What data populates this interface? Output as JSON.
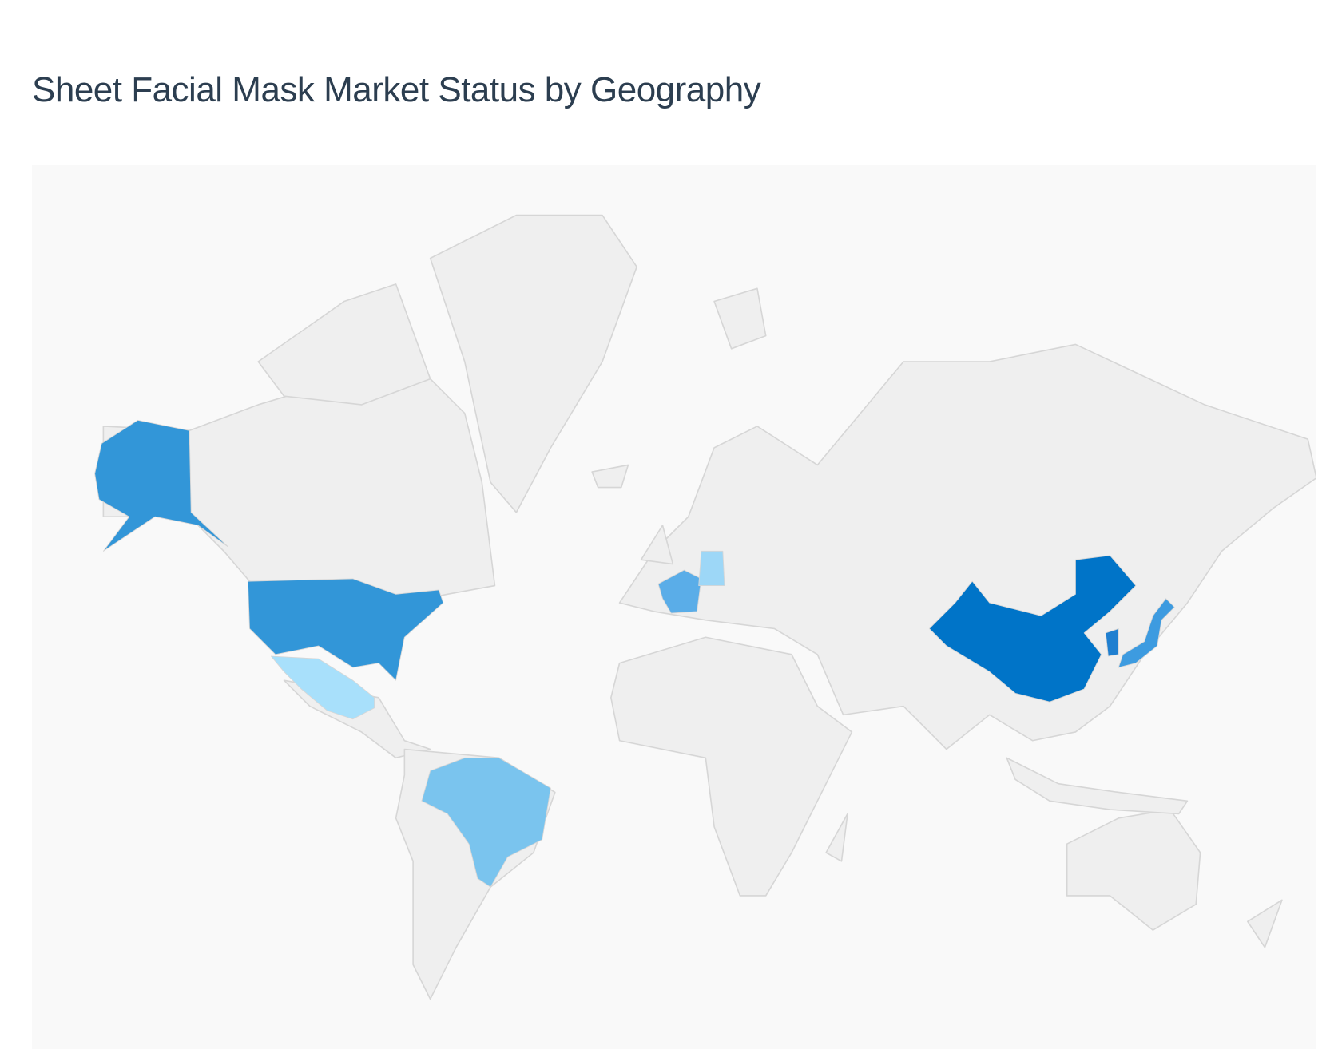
{
  "header": {
    "title": "Sheet Facial Mask Market Status by Geography"
  },
  "map": {
    "type": "choropleth",
    "projection": "world",
    "land_color": "#efefef",
    "border_color": "#d6d6d6",
    "background_color": "#f9f9f9",
    "highlighted_regions": [
      {
        "id": "CHN",
        "fill": "#0074c8"
      },
      {
        "id": "USA",
        "fill": "#3296d8"
      },
      {
        "id": "JPN",
        "fill": "#3d9be0"
      },
      {
        "id": "KOR",
        "fill": "#1f7fd0"
      },
      {
        "id": "FRA",
        "fill": "#5aade8"
      },
      {
        "id": "BRA",
        "fill": "#7ac4ee"
      },
      {
        "id": "DEU",
        "fill": "#9dd7f7"
      },
      {
        "id": "MEX",
        "fill": "#a8e0fb"
      }
    ]
  }
}
